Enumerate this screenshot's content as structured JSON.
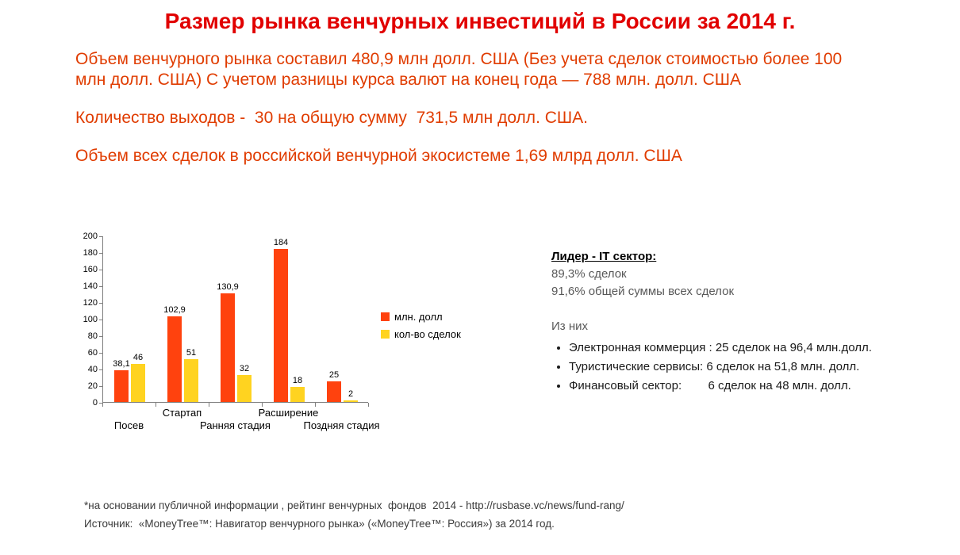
{
  "page": {
    "title": "Размер рынка венчурных инвестиций в России за 2014 г.",
    "paragraphs": [
      "Объем венчурного рынка составил 480,9 млн долл. США (Без учета сделок стоимостью более 100 млн долл. США) С учетом разницы курса валют на конец года — 788 млн. долл. США",
      "Количество выходов -  30 на общую сумму  731,5 млн долл. США.",
      "Объем всех сделок в российской венчурной экосистеме 1,69 млрд долл. США"
    ]
  },
  "chart_data": {
    "type": "bar",
    "categories": [
      "Посев",
      "Стартап",
      "Ранняя стадия",
      "Расширение",
      "Поздняя стадия"
    ],
    "series": [
      {
        "name": "млн. долл",
        "color": "#FF420E",
        "values": [
          38.1,
          102.9,
          130.9,
          184,
          25
        ],
        "labels": [
          "38,1",
          "102,9",
          "130,9",
          "184",
          "25"
        ]
      },
      {
        "name": "кол-во сделок",
        "color": "#FFD320",
        "values": [
          46,
          51,
          32,
          18,
          2
        ],
        "labels": [
          "46",
          "51",
          "32",
          "18",
          "2"
        ]
      }
    ],
    "ylim": [
      0,
      200
    ],
    "ytick_step": 20,
    "grid": false,
    "legend_position": "right"
  },
  "leader_block": {
    "heading": "Лидер - IT сектор:",
    "lines": [
      "89,3% сделок",
      "91,6% общей суммы всех сделок"
    ],
    "subheading": "Из них",
    "bullets": [
      "Электронная коммерция : 25 сделок на 96,4 млн.долл.",
      "Туристические сервисы: 6 сделок на 51,8 млн. долл.",
      "Финансовый сектор:        6 сделок на 48 млн. долл."
    ]
  },
  "footer": {
    "note": "*на основании публичной информации , рейтинг венчурных  фондов  2014 - http://rusbase.vc/news/fund-rang/",
    "source": "Источник:  «MoneyTree™: Навигатор венчурного рынка» («MoneyTree™: Россия») за 2014 год."
  },
  "colors": {
    "title_text": "#e10000",
    "body_text": "#e03c00",
    "series1": "#FF420E",
    "series2": "#FFD320",
    "axis": "#808080"
  }
}
